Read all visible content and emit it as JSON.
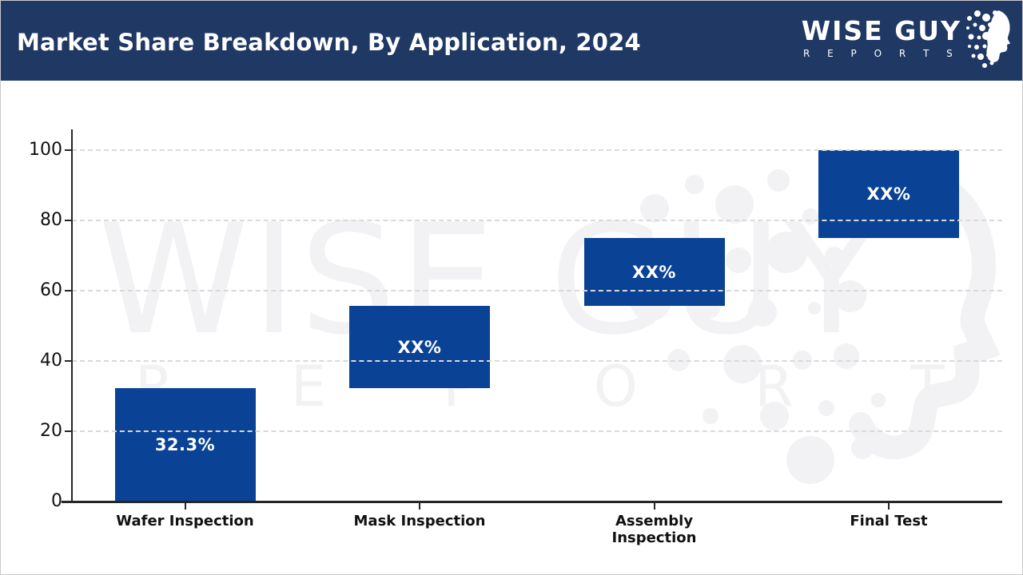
{
  "header": {
    "title": "Market Share Breakdown, By Application, 2024",
    "logo": {
      "line1": "WISE GUY",
      "line2": "R E P O R T S"
    }
  },
  "watermark": {
    "line1": "WISE GUY",
    "line2": "R E P O R T S"
  },
  "colors": {
    "header_bg": "#1f3864",
    "bar_fill": "#0a4296",
    "bar_label_text": "#ffffff",
    "gridline": "#d9d9d9",
    "axis": "#262626",
    "watermark": "#f2f2f4"
  },
  "chart_data": {
    "type": "bar",
    "subtype": "waterfall",
    "title": "Market Share Breakdown, By Application, 2024",
    "categories": [
      "Wafer Inspection",
      "Mask Inspection",
      "Assembly Inspection",
      "Final Test"
    ],
    "tick_labels": [
      "Wafer Inspection",
      "Mask Inspection",
      "Assembly\nInspection",
      "Final Test"
    ],
    "segments": [
      {
        "category": "Wafer Inspection",
        "start": 0,
        "end": 32.3,
        "label": "32.3%"
      },
      {
        "category": "Mask Inspection",
        "start": 32.3,
        "end": 55.6,
        "label": "XX%"
      },
      {
        "category": "Assembly Inspection",
        "start": 55.6,
        "end": 75.0,
        "label": "XX%"
      },
      {
        "category": "Final Test",
        "start": 75.0,
        "end": 100.0,
        "label": "XX%"
      }
    ],
    "xlabel": "",
    "ylabel": "",
    "y_ticks": [
      0,
      20,
      40,
      60,
      80,
      100
    ],
    "ylim": [
      0,
      106
    ],
    "grid": "horizontal-dashed",
    "legend": "none"
  }
}
